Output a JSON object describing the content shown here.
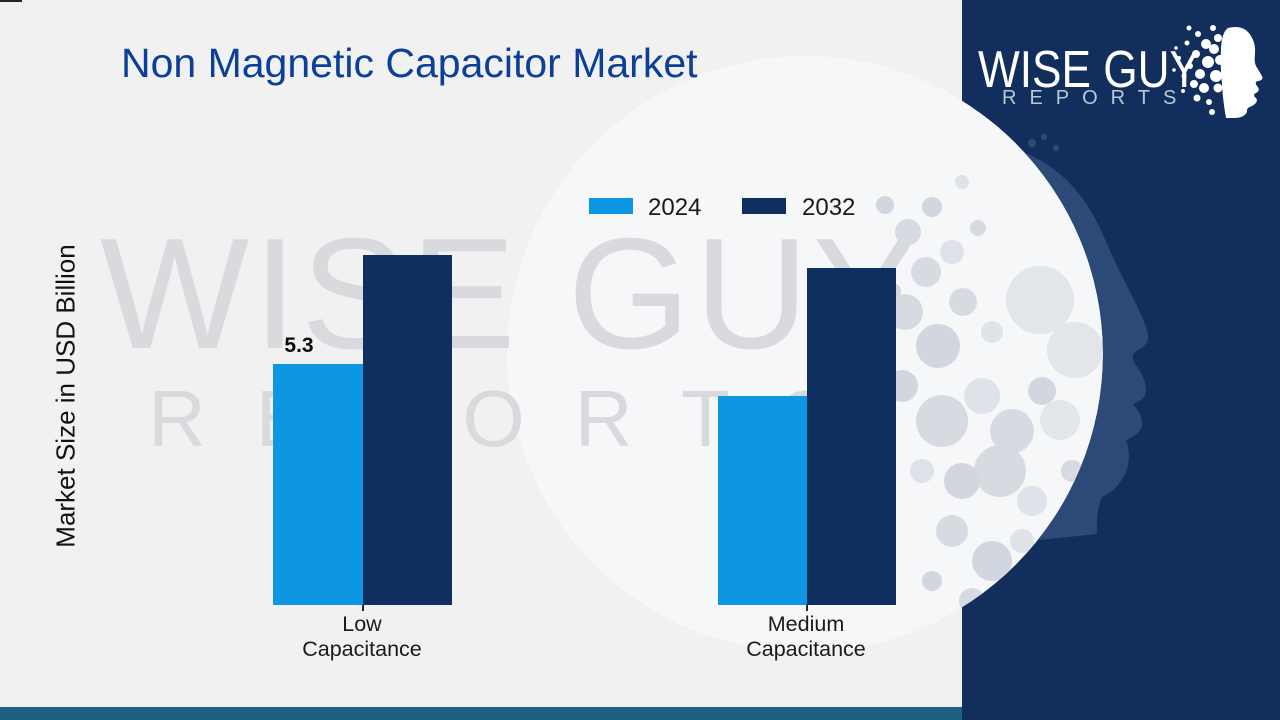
{
  "header": {
    "title": "Non Magnetic Capacitor Market",
    "title_color": "#0c3f98"
  },
  "watermark": {
    "line1": "WISE GUY",
    "line2": "REPORTS"
  },
  "brand": {
    "wordmark": "WISE GUY",
    "wordmark_sub": "REPORTS",
    "panel_color": "#112e5c",
    "sub_text_color": "#b9c8d8"
  },
  "chart_data": {
    "type": "bar",
    "title": "Non Magnetic Capacitor Market",
    "xlabel": "",
    "ylabel": "Market Size in USD Billion",
    "categories": [
      "Low Capacitance",
      "Medium Capacitance"
    ],
    "series": [
      {
        "name": "2024",
        "color": "#0d96e2",
        "values": [
          5.3,
          4.6
        ],
        "data_labels": [
          "5.3",
          ""
        ]
      },
      {
        "name": "2032",
        "color": "#0f2f60",
        "values": [
          7.7,
          7.4
        ],
        "data_labels": [
          "",
          ""
        ]
      }
    ],
    "ylim": [
      0,
      8.5
    ],
    "grid": false,
    "legend_position": "top-center",
    "bar_value_label_shown": "5.3"
  },
  "axis": {
    "category_lines": [
      {
        "l1": "Low",
        "l2": "Capacitance"
      },
      {
        "l1": "Medium",
        "l2": "Capacitance"
      }
    ]
  },
  "footer": {
    "bar_color": "#1d607f"
  }
}
